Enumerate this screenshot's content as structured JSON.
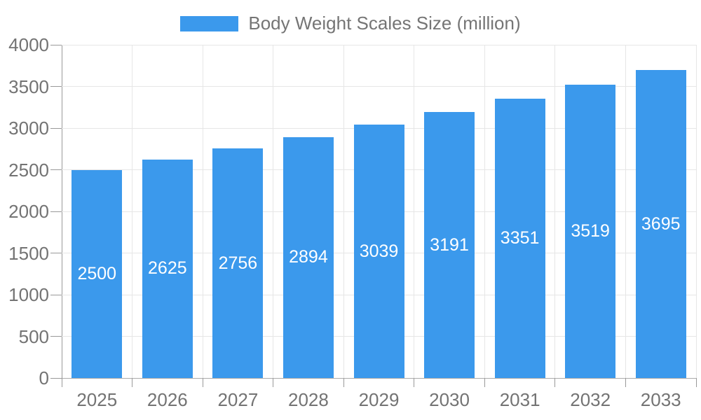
{
  "legend": {
    "swatch_color": "#3b99ec"
  },
  "chart_data": {
    "type": "bar",
    "title": "Body Weight Scales Size (million)",
    "categories": [
      "2025",
      "2026",
      "2027",
      "2028",
      "2029",
      "2030",
      "2031",
      "2032",
      "2033"
    ],
    "values": [
      2500,
      2625,
      2756,
      2894,
      3039,
      3191,
      3351,
      3519,
      3695
    ],
    "xlabel": "",
    "ylabel": "",
    "ylim": [
      0,
      4000
    ],
    "yticks": [
      0,
      500,
      1000,
      1500,
      2000,
      2500,
      3000,
      3500,
      4000
    ],
    "grid": true,
    "legend_position": "top",
    "colors": {
      "bar": "#3b99ec",
      "bar_label": "#ffffff",
      "grid": "#e6e6e6",
      "axis": "#999999",
      "baseline": "#ababab",
      "tick_label": "#737373",
      "legend_text": "#757575",
      "background": "#ffffff"
    }
  }
}
